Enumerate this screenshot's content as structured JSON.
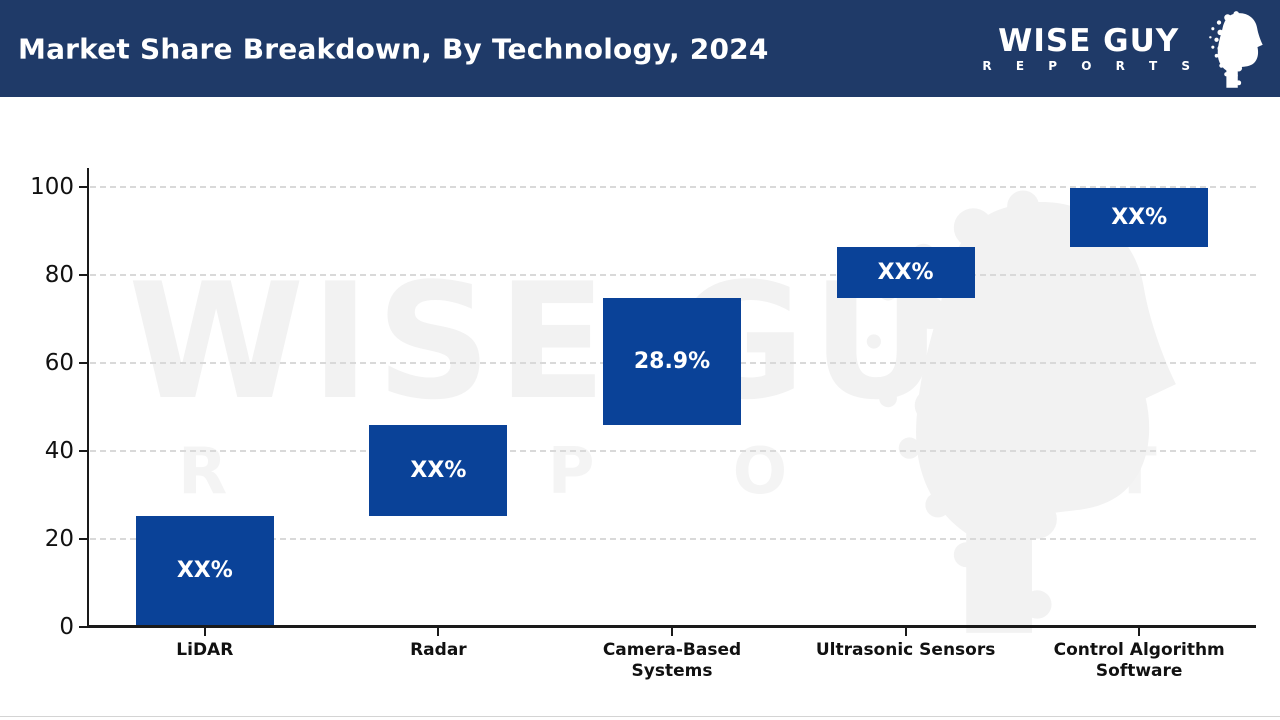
{
  "header": {
    "title": "Market Share Breakdown, By Technology, 2024",
    "logo": {
      "wordmark": "WISE GUY",
      "subtext": "R E P O R T S"
    }
  },
  "watermark": {
    "line1": "WISE GUY",
    "line2": "R E P O R T S"
  },
  "chart_data": {
    "type": "bar",
    "subtype": "waterfall-floating-bars",
    "title": "Market Share Breakdown, By Technology, 2024",
    "xlabel": "",
    "ylabel": "",
    "ylim": [
      0,
      104
    ],
    "y_ticks": [
      0,
      20,
      40,
      60,
      80,
      100
    ],
    "grid": "horizontal dashed, behind bars",
    "legend": "none",
    "bar_color": "#0a4298",
    "value_label_color": "#ffffff",
    "categories": [
      "LiDAR",
      "Radar",
      "Camera-Based Systems",
      "Ultrasonic Sensors",
      "Control Algorithm Software"
    ],
    "bars": [
      {
        "category": "LiDAR",
        "start": 0,
        "end": 25.1,
        "value_label": "XX%"
      },
      {
        "category": "Radar",
        "start": 25.1,
        "end": 45.8,
        "value_label": "XX%"
      },
      {
        "category": "Camera-Based Systems",
        "start": 45.8,
        "end": 74.7,
        "value_label": "28.9%"
      },
      {
        "category": "Ultrasonic Sensors",
        "start": 74.7,
        "end": 86.1,
        "value_label": "XX%"
      },
      {
        "category": "Control Algorithm Software",
        "start": 86.1,
        "end": 99.6,
        "value_label": "XX%"
      }
    ]
  },
  "colors": {
    "header_bg": "#1f3a68",
    "bar": "#0a4298",
    "axis": "#1a1a1a",
    "grid": "#d9d9d9",
    "watermark": "#f2f2f2",
    "text": "#111111"
  }
}
